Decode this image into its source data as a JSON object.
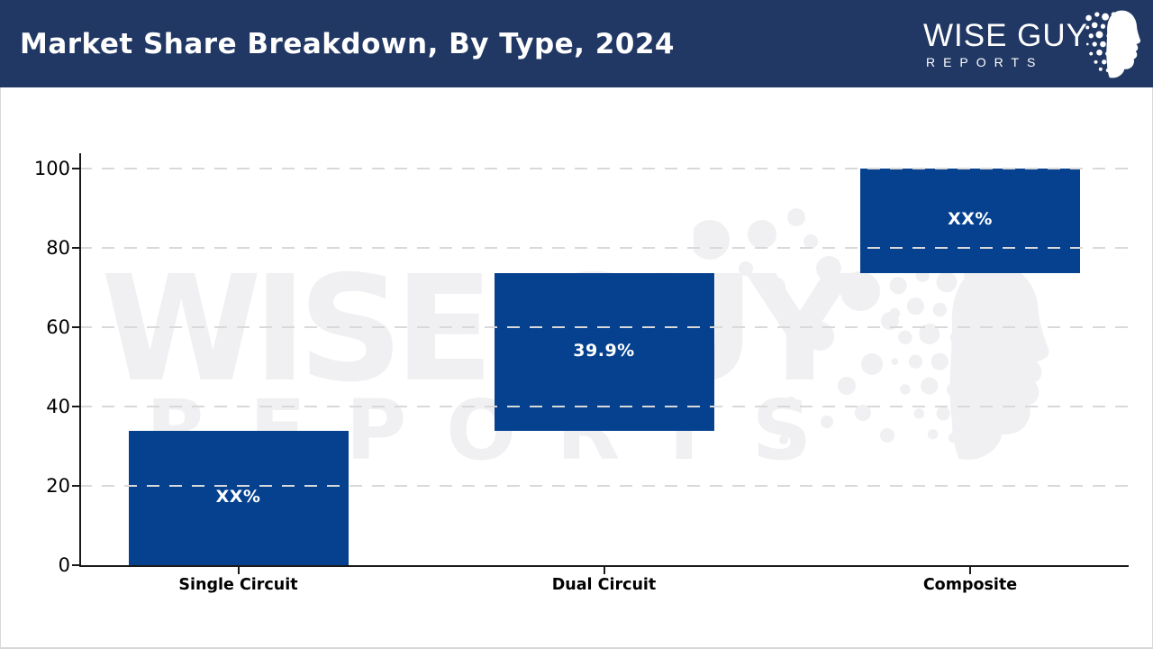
{
  "header": {
    "title": "Market Share Breakdown, By Type, 2024",
    "logo": {
      "name": "WISE GUY",
      "tagline": "REPORTS"
    }
  },
  "watermark": {
    "name": "WISE GUY",
    "tagline": "REPORTS"
  },
  "colors": {
    "header_bg": "#213864",
    "bar": "#05418f",
    "bar_label": "#ffffff",
    "grid": "#d9d9d9",
    "axis": "#1a1a1a",
    "watermark": "#f0f0f2",
    "title_text": "#ffffff",
    "frame_border": "#d8d8d8"
  },
  "chart_data": {
    "type": "bar",
    "subtype": "floating-segment-waterfall",
    "title": "Market Share Breakdown, By Type, 2024",
    "categories": [
      "Single Circuit",
      "Dual Circuit",
      "Composite"
    ],
    "segments": [
      {
        "category": "Single Circuit",
        "start": 0,
        "end": 33.8,
        "label": "XX%"
      },
      {
        "category": "Dual Circuit",
        "start": 33.8,
        "end": 73.7,
        "label": "39.9%"
      },
      {
        "category": "Composite",
        "start": 73.7,
        "end": 100,
        "label": "XX%"
      }
    ],
    "xlabel": "",
    "ylabel": "",
    "yticks": [
      0,
      20,
      40,
      60,
      80,
      100
    ],
    "ylim": [
      0,
      107
    ],
    "grid": "horizontal-dashed",
    "legend": false
  }
}
